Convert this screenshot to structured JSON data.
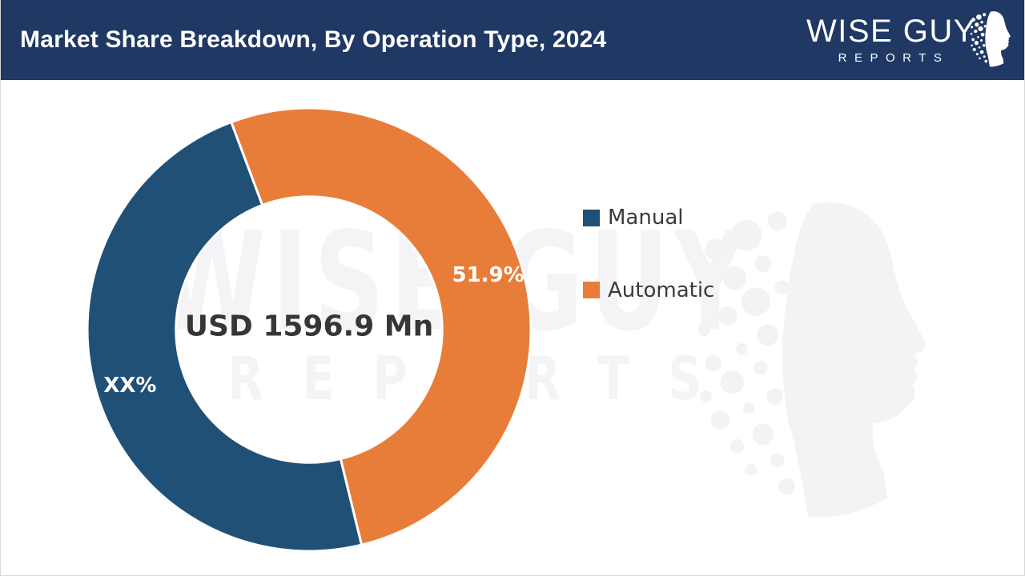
{
  "header": {
    "title": "Market Share Breakdown, By Operation Type, 2024",
    "background_color": "#1F3864"
  },
  "logo": {
    "wordmark": "WISE GUY",
    "subtext": "REPORTS"
  },
  "watermark": {
    "line1": "WISE GUY",
    "line2": "REPORTS"
  },
  "chart_data": {
    "type": "pie",
    "variant": "donut",
    "title": "Market Share Breakdown, By Operation Type, 2024",
    "center_label": "USD 1596.9 Mn",
    "start_angle_deg": 166.3,
    "inner_radius_ratio": 0.6,
    "legend_position": "right",
    "slice_divider_color": "#ffffff",
    "series": [
      {
        "name": "Manual",
        "value": 48.1,
        "display_label": "XX%",
        "color": "#215077"
      },
      {
        "name": "Automatic",
        "value": 51.9,
        "display_label": "51.9%",
        "color": "#E87D3A"
      }
    ]
  }
}
